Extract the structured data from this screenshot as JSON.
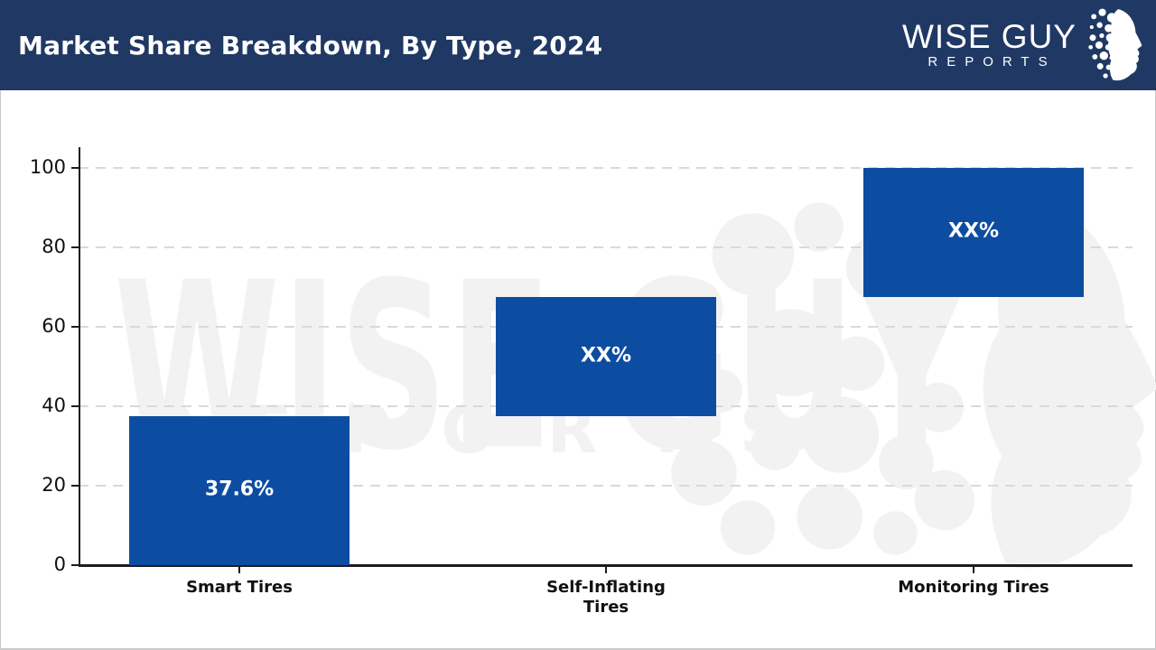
{
  "header": {
    "title": "Market Share Breakdown, By Type, 2024"
  },
  "logo": {
    "primary": "WISE GUY",
    "secondary": "REPORTS"
  },
  "watermark": {
    "primary": "WISE GUY",
    "secondary": "REPORTS"
  },
  "chart_data": {
    "type": "bar",
    "subtype": "waterfall-floating-bars",
    "title": "Market Share Breakdown, By Type, 2024",
    "categories": [
      "Smart Tires",
      "Self-Inflating\nTires",
      "Monitoring Tires"
    ],
    "series": [
      {
        "name": "Market share (%)",
        "segments": [
          {
            "category": "Smart Tires",
            "start": 0,
            "end": 37.6,
            "label": "37.6%"
          },
          {
            "category": "Self-Inflating Tires",
            "start": 37.6,
            "end": 67.6,
            "label": "XX%"
          },
          {
            "category": "Monitoring Tires",
            "start": 67.6,
            "end": 100,
            "label": "XX%"
          }
        ]
      }
    ],
    "xlabel": "",
    "ylabel": "",
    "ylim": [
      0,
      105
    ],
    "yticks": [
      0,
      20,
      40,
      60,
      80,
      100
    ],
    "grid": "horizontal-dashed",
    "legend": "none",
    "colors": {
      "header_bg": "#203864",
      "header_text": "#ffffff",
      "bar": "#0d4da1",
      "bar_label": "#ffffff",
      "axis": "#1c1c1c",
      "tick_label": "#111111",
      "gridline": "#d9d9d9",
      "watermark": "#f2f2f2"
    }
  }
}
